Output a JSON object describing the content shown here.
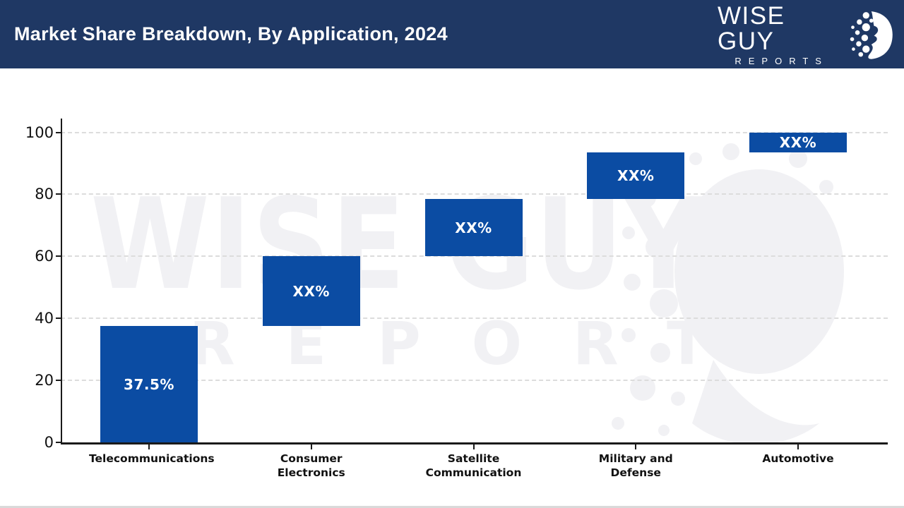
{
  "header": {
    "title": "Market Share Breakdown, By Application, 2024",
    "logo": {
      "line1": "WISE GUY",
      "line2": "REPORTS"
    }
  },
  "watermark": {
    "line1": "WISE GUY",
    "line2": "REPORTS"
  },
  "chart_data": {
    "type": "bar",
    "subtype": "waterfall-stacked-percentage",
    "title": "Market Share Breakdown, By Application, 2024",
    "categories": [
      "Telecommunications",
      "Consumer Electronics",
      "Satellite Communication",
      "Military and Defense",
      "Automotive"
    ],
    "segments": [
      {
        "category": "Telecommunications",
        "start": 0,
        "end": 37.5,
        "label": "37.5%"
      },
      {
        "category": "Consumer Electronics",
        "start": 37.5,
        "end": 60,
        "label": "XX%"
      },
      {
        "category": "Satellite Communication",
        "start": 60,
        "end": 78.5,
        "label": "XX%"
      },
      {
        "category": "Military and Defense",
        "start": 78.5,
        "end": 93.5,
        "label": "XX%"
      },
      {
        "category": "Automotive",
        "start": 93.5,
        "end": 100,
        "label": "XX%"
      }
    ],
    "yticks": [
      0,
      20,
      40,
      60,
      80,
      100
    ],
    "ylim": [
      0,
      104
    ],
    "xlabel": "",
    "ylabel": "",
    "grid": "horizontal-dashed",
    "legend": "none",
    "bar_color": "#0b4ca3",
    "value_label_color": "#ffffff",
    "header_color": "#1f3864"
  }
}
